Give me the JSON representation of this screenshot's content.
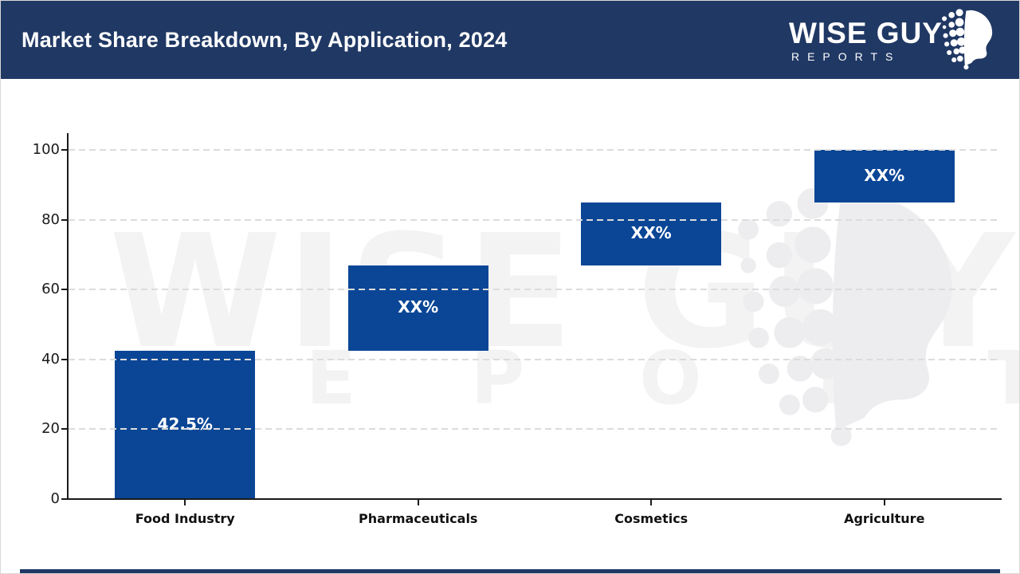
{
  "header": {
    "title": "Market Share Breakdown, By Application, 2024",
    "logo": {
      "line1": "WISE GUY",
      "line2": "REPORTS"
    }
  },
  "watermark": {
    "line1": "WISE GUY",
    "line2": "R E P O R T S"
  },
  "chart_data": {
    "type": "bar",
    "variant": "waterfall",
    "title": "Market Share Breakdown, By Application, 2024",
    "categories": [
      "Food Industry",
      "Pharmaceuticals",
      "Cosmetics",
      "Agriculture"
    ],
    "series": [
      {
        "name": "Market Share",
        "segments": [
          {
            "category": "Food Industry",
            "start": 0,
            "end": 42.5,
            "label": "42.5%"
          },
          {
            "category": "Pharmaceuticals",
            "start": 42.5,
            "end": 67,
            "label": "XX%"
          },
          {
            "category": "Cosmetics",
            "start": 67,
            "end": 85,
            "label": "XX%"
          },
          {
            "category": "Agriculture",
            "start": 85,
            "end": 100,
            "label": "XX%"
          }
        ]
      }
    ],
    "xlabel": "",
    "ylabel": "",
    "ylim": [
      0,
      105
    ],
    "yticks": [
      0,
      20,
      40,
      60,
      80,
      100
    ],
    "grid": "horizontal-dashed",
    "legend": "none",
    "bar_color": "#0b4696",
    "bar_label_color": "#ffffff",
    "grid_color": "#dcdcdc",
    "axis_color": "#1a1a1a"
  },
  "colors": {
    "header_bg": "#203864",
    "footer_bg": "#203864",
    "watermark": "#f3f3f4",
    "background": "#ffffff"
  }
}
